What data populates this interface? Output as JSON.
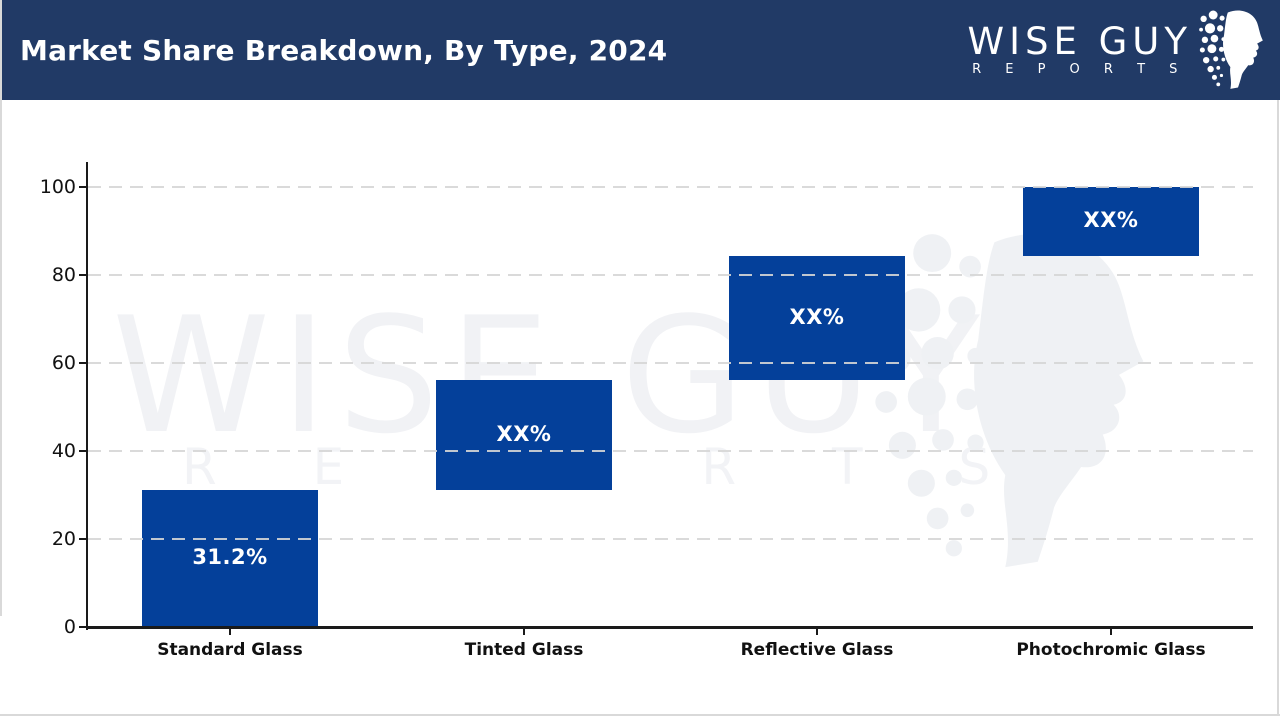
{
  "header": {
    "title": "Market Share Breakdown, By Type, 2024",
    "bg_color": "#213a66",
    "logo": {
      "name": "WISE GUY",
      "subtitle": "R E P O R T S"
    }
  },
  "watermark": {
    "name": "WISE GUY",
    "subtitle": "R E P O R T S"
  },
  "chart_data": {
    "type": "bar",
    "subtype": "waterfall",
    "title": "Market Share Breakdown, By Type, 2024",
    "categories": [
      "Standard Glass",
      "Tinted Glass",
      "Reflective Glass",
      "Photochromic Glass"
    ],
    "segments": [
      {
        "category": "Standard Glass",
        "start": 0,
        "end": 31.2,
        "label": "31.2%"
      },
      {
        "category": "Tinted Glass",
        "start": 31.2,
        "end": 56.2,
        "label": "XX%"
      },
      {
        "category": "Reflective Glass",
        "start": 56.2,
        "end": 84.4,
        "label": "XX%"
      },
      {
        "category": "Photochromic Glass",
        "start": 84.4,
        "end": 100,
        "label": "XX%"
      }
    ],
    "xlabel": "",
    "ylabel": "",
    "ylim": [
      0,
      100
    ],
    "yticks": [
      0,
      20,
      40,
      60,
      80,
      100
    ],
    "grid": "horizontal-dashed",
    "legend_position": "none",
    "bar_color": "#04409a",
    "colors": {
      "axis": "#1a1a1a",
      "gridline": "#d6d6d6",
      "bar_label": "#ffffff"
    }
  }
}
